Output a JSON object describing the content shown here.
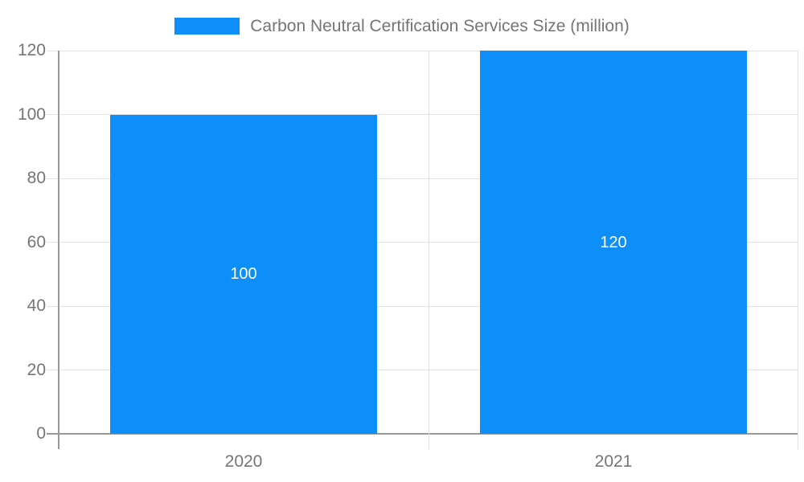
{
  "chart_data": {
    "type": "bar",
    "title": "Carbon Neutral Certification Services Size (million)",
    "categories": [
      "2020",
      "2021"
    ],
    "series": [
      {
        "name": "Carbon Neutral Certification Services Size (million)",
        "values": [
          100,
          120
        ]
      }
    ],
    "bar_value_labels": [
      "100",
      "120"
    ],
    "xlabel": "",
    "ylabel": "",
    "yticks": [
      0,
      20,
      40,
      60,
      80,
      100,
      120
    ],
    "ylim": [
      0,
      120
    ],
    "grid": true,
    "legend_position": "top-center",
    "colors": {
      "bar": "#0D8EF9",
      "grid_light": "#E3E3E3",
      "axis_dark": "#999999",
      "tick_text": "#757575",
      "bar_label_text": "#FFFFFF",
      "background": "#FFFFFF"
    }
  }
}
